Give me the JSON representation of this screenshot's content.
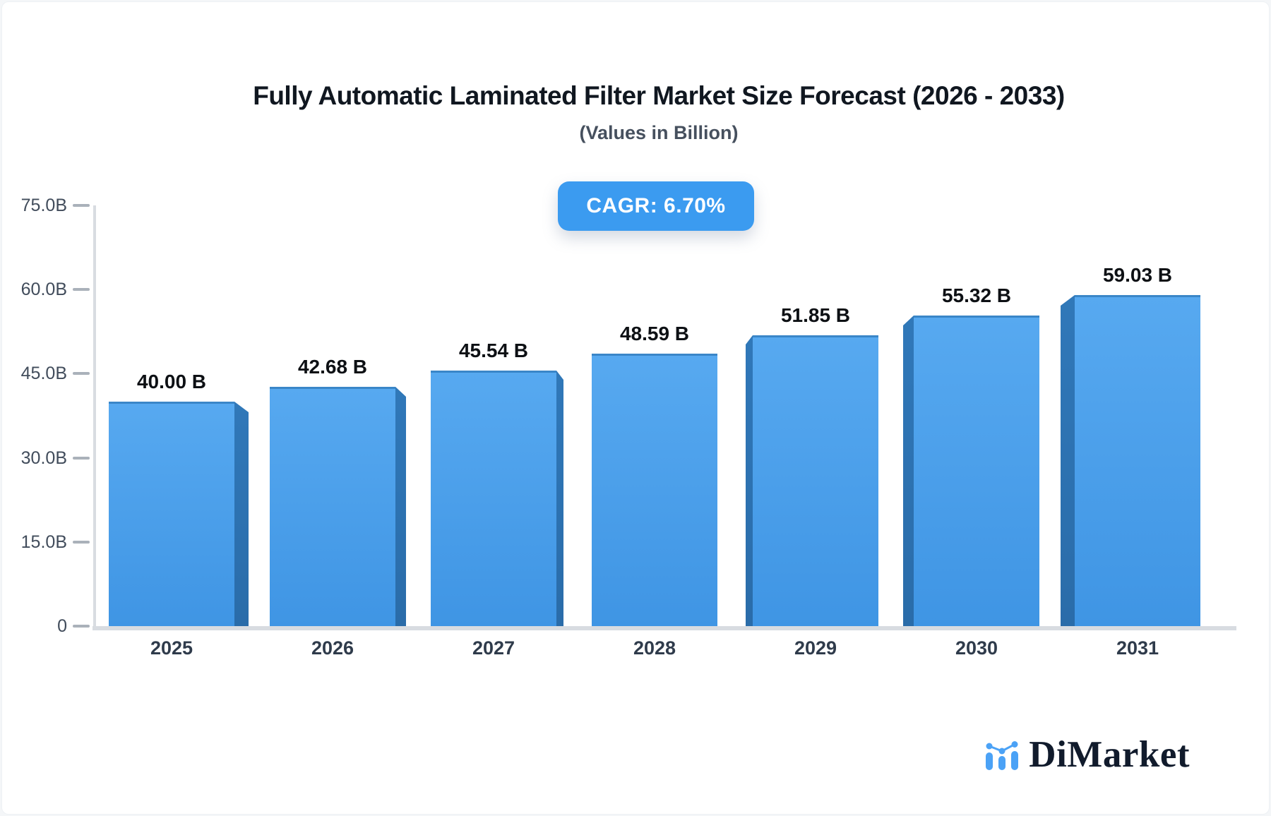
{
  "chart_data": {
    "type": "bar",
    "title": "Fully Automatic Laminated Filter Market Size Forecast (2026 - 2033)",
    "subtitle": "(Values in Billion)",
    "categories": [
      "2025",
      "2026",
      "2027",
      "2028",
      "2029",
      "2030",
      "2031"
    ],
    "values": [
      40.0,
      42.68,
      45.54,
      48.59,
      51.85,
      55.32,
      59.03
    ],
    "value_labels": [
      "40.00 B",
      "42.68 B",
      "45.54 B",
      "48.59 B",
      "51.85 B",
      "55.32 B",
      "59.03 B"
    ],
    "ylabel": "",
    "xlabel": "",
    "ylim": [
      0,
      75
    ],
    "y_ticks": [
      {
        "label": "75.0B",
        "value": 75
      },
      {
        "label": "60.0B",
        "value": 60
      },
      {
        "label": "45.0B",
        "value": 45
      },
      {
        "label": "30.0B",
        "value": 30
      },
      {
        "label": "15.0B",
        "value": 15
      },
      {
        "label": "0",
        "value": 0
      }
    ],
    "grid": false,
    "legend": false,
    "bar_style": "3d",
    "colors": {
      "bar_top": "#57a9f0",
      "bar_bottom": "#3f95e4",
      "bar_edge": "#3a86c8",
      "bar_side_top": "#3078b9",
      "bar_side_bottom": "#2a6ca9",
      "axis": "#d8dce1",
      "tick": "#aab1ba",
      "tick_label": "#414c5b",
      "category_label": "#2f3b4b",
      "value_label": "#0d1014"
    }
  },
  "cagr": {
    "label": "CAGR: 6.70%",
    "value": "6.70%",
    "badge_color": "#3b9bf0"
  },
  "brand": {
    "name": "DiMarket",
    "icon_color": "#4ba2f6",
    "text_color": "#111b2c"
  }
}
